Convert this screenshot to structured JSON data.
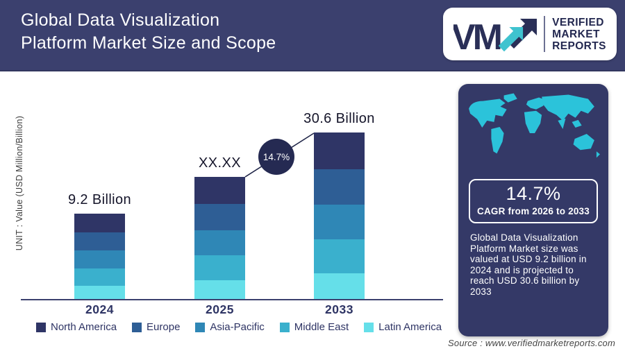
{
  "header": {
    "title_lines": [
      "Global Data Visualization",
      "Platform Market Size and Scope"
    ]
  },
  "logo": {
    "mark_text": "VM",
    "name_lines": [
      "VERIFIED",
      "MARKET",
      "REPORTS"
    ]
  },
  "chart_data": {
    "type": "bar",
    "stacked": true,
    "categories": [
      "2024",
      "2025",
      "2033"
    ],
    "bar_value_labels": [
      "9.2 Billion",
      "XX.XX",
      "30.6 Billion"
    ],
    "totals_usd_billion": [
      9.2,
      null,
      30.6
    ],
    "series": [
      {
        "name": "North America",
        "color": "#2f3566"
      },
      {
        "name": "Europe",
        "color": "#2e5e95"
      },
      {
        "name": "Asia-Pacific",
        "color": "#2f87b6"
      },
      {
        "name": "Middle East",
        "color": "#3ab0cd"
      },
      {
        "name": "Latin America",
        "color": "#65dfe9"
      }
    ],
    "segment_fractions": [
      0.22,
      0.215,
      0.205,
      0.205,
      0.155
    ],
    "ylabel": "UNIT : Value (USD Million/Billion)",
    "cagr_badge": "14.7%",
    "legend_position": "bottom",
    "axis_color": "#3b406e"
  },
  "sidebar": {
    "map_icon": "world-map",
    "cagr_value": "14.7%",
    "cagr_caption": "CAGR from 2026 to 2033",
    "description": "Global Data Visualization Platform Market  size was valued at USD 9.2 billion in 2024 and is projected to reach USD 30.6 billion by 2033"
  },
  "source_note": "Source : www.verifiedmarketreports.com",
  "colors": {
    "header_bg": "#3b406e",
    "sidebar_bg": "#343967",
    "badge_bg": "#252a52",
    "map_teal": "#2bc3da",
    "text_navy": "#2e3464"
  }
}
